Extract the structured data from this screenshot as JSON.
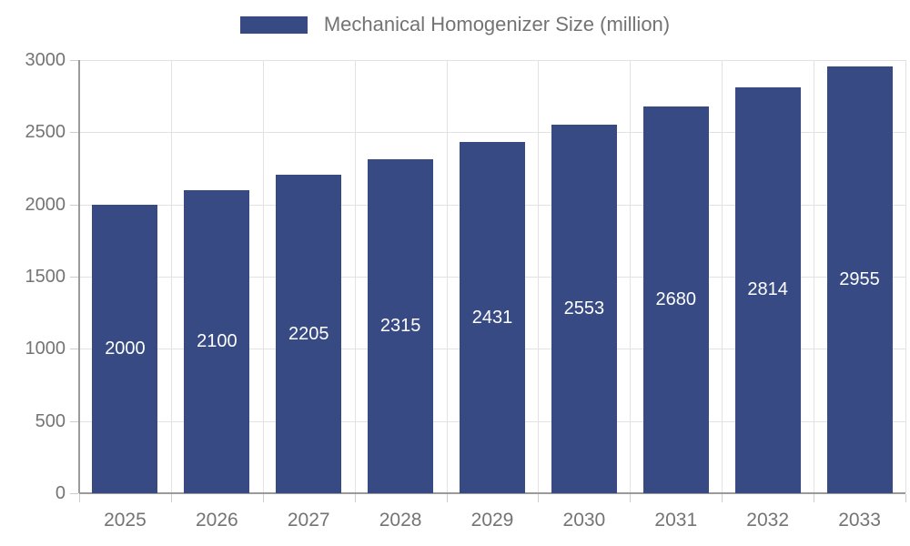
{
  "legend": {
    "label": "Mechanical Homogenizer Size (million)"
  },
  "chart_data": {
    "type": "bar",
    "title": "Mechanical Homogenizer Size (million)",
    "categories": [
      "2025",
      "2026",
      "2027",
      "2028",
      "2029",
      "2030",
      "2031",
      "2032",
      "2033"
    ],
    "values": [
      2000,
      2100,
      2205,
      2315,
      2431,
      2553,
      2680,
      2814,
      2955
    ],
    "xlabel": "",
    "ylabel": "",
    "ylim": [
      0,
      3000
    ],
    "ytick_step": 500,
    "ytick_labels": [
      "0",
      "500",
      "1000",
      "1500",
      "2000",
      "2500",
      "3000"
    ],
    "grid": true,
    "legend_position": "top-center",
    "value_labels": "inside-center-white",
    "colors": {
      "bar": "#374a84",
      "bar_label": "#ffffff",
      "axis_text": "#747474",
      "gridline": "#e2e2e2",
      "axis_line": "#9a9a9a",
      "tick": "#c9cdd4",
      "background": "#ffffff"
    }
  }
}
